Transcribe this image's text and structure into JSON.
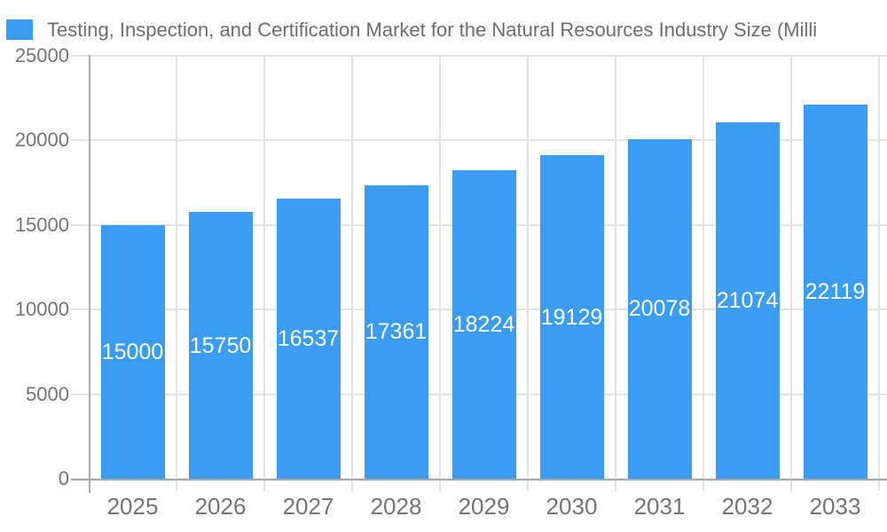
{
  "chart_data": {
    "type": "bar",
    "title": "Testing, Inspection, and Certification Market for the Natural Resources Industry Size (Milli",
    "categories": [
      "2025",
      "2026",
      "2027",
      "2028",
      "2029",
      "2030",
      "2031",
      "2032",
      "2033"
    ],
    "values": [
      15000,
      15750,
      16537,
      17361,
      18224,
      19129,
      20078,
      21074,
      22119
    ],
    "xlabel": "",
    "ylabel": "",
    "ylim": [
      0,
      25000
    ],
    "yticks": [
      0,
      5000,
      10000,
      15000,
      20000,
      25000
    ],
    "grid": true,
    "legend_position": "top-left",
    "bar_labels_inside": true
  },
  "colors": {
    "bar": "#3B9DF1",
    "bar_label_text": "#FFFFFF",
    "grid": "#E3E3E3",
    "axis": "#A9A9A9",
    "tick_text": "#757575",
    "title_text": "#6E6E6E",
    "background": "#FFFFFF"
  }
}
